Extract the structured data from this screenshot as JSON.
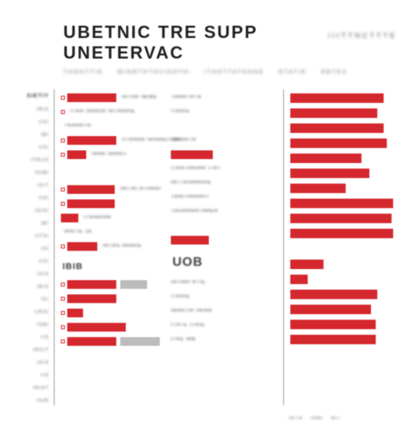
{
  "title": {
    "main": "UBETNIC TRE SUPP UNETERVAC",
    "sub": "IIITTNCTTTE",
    "nav": [
      "THRHTTIE",
      "MINBTHTHUIOHTH",
      "ITHHTTATHHNE",
      "RTATIE",
      "RBTES"
    ]
  },
  "colors": {
    "red": "#d8232a",
    "red_light": "#d8232a",
    "text": "#383838",
    "text_muted": "#6a6a6a",
    "gray_bar": "#bfbfbf",
    "axis": "#9a9a9a",
    "bg": "#ffffff"
  },
  "axis": {
    "header": "SIETIY",
    "labels": [
      "IRIS",
      "IISI",
      "IBI",
      "IISI",
      "ITRIIS",
      "ISIBI",
      "ISIT",
      "IISI",
      "ISISI",
      "IBI",
      "IITSI",
      "ISI",
      "IISI",
      "ISIS",
      "IBIS",
      "ISI",
      "IIRSI",
      "ISBI",
      "IIS",
      "IRSIT",
      "ISIS",
      "IIS",
      "IRIST",
      "ISIR"
    ]
  },
  "col1": {
    "section_a": {
      "rows": [
        {
          "dot": true,
          "bar": 62,
          "txt": "IRTHR IBIME"
        },
        {
          "dot": true,
          "bar": 0,
          "txt": "ITRH IHRRIH IRTHRHIE"
        },
        {
          "dot": false,
          "bar": 0,
          "txt": "TRARHTH"
        },
        {
          "dot": true,
          "bar": 62,
          "txt": "IITRHRR IRIHREITHR"
        },
        {
          "dot": true,
          "bar": 24,
          "txt": "IRHR IRHRIT"
        }
      ]
    },
    "section_b": {
      "rows": [
        {
          "dot": true,
          "bar": 60,
          "txt": "IRITRI RTHRRI"
        },
        {
          "dot": true,
          "bar": 60,
          "txt": ""
        },
        {
          "dot": false,
          "bar": 22,
          "txt": "ITRHRIHR"
        },
        {
          "dot": false,
          "bar": 0,
          "txt": "IRRTIE  16"
        },
        {
          "dot": true,
          "bar": 38,
          "txt": "IRTHS IRHRIE"
        }
      ]
    },
    "section_c": {
      "label": "IBIB",
      "rows": [
        {
          "dot": true,
          "bar": 62,
          "gray": 34
        },
        {
          "dot": true,
          "bar": 62,
          "gray": 0
        },
        {
          "dot": true,
          "bar": 20,
          "gray": 0
        },
        {
          "dot": true,
          "bar": 74,
          "gray": 0
        },
        {
          "dot": true,
          "bar": 62,
          "gray": 50
        }
      ]
    }
  },
  "col2": {
    "rows": [
      {
        "bar": 0,
        "txt": "THHRTHTR"
      },
      {
        "bar": 0,
        "txt": "ITRRIE"
      },
      {
        "bar": 0,
        "txt": ""
      },
      {
        "bar": 0,
        "txt": "IIRINRTH"
      },
      {
        "bar": 53,
        "txt": ""
      },
      {
        "bar": 0,
        "txt": "ITRRTHRIHR ITRT"
      },
      {
        "bar": 0,
        "txt": "IRTTRIHRRHIE"
      },
      {
        "bar": 0,
        "txt": "TRRITHRHRIT"
      },
      {
        "bar": 0,
        "txt": "THUHRRHTHREH"
      },
      {
        "bar": 0,
        "txt": ""
      },
      {
        "bar": 48,
        "txt": ""
      }
    ],
    "section_label": "UOB",
    "bottom_rows": [
      {
        "bar": 0,
        "txt": "IRTHRI RTIE"
      },
      {
        "bar": 0,
        "txt": "ITRRIE"
      },
      {
        "bar": 0,
        "txt": "IRHRTHI IRIHR"
      },
      {
        "bar": 0,
        "txt": "ITHTE  ITRIE"
      },
      {
        "bar": 0,
        "txt": "ITRE IRB"
      }
    ]
  },
  "col3": {
    "bars": [
      118,
      110,
      118,
      122,
      90,
      100,
      70,
      130,
      128,
      130,
      42,
      22,
      110,
      102,
      108,
      108
    ]
  },
  "legend": [
    "IRTR",
    "IRBI",
    "RIT"
  ]
}
